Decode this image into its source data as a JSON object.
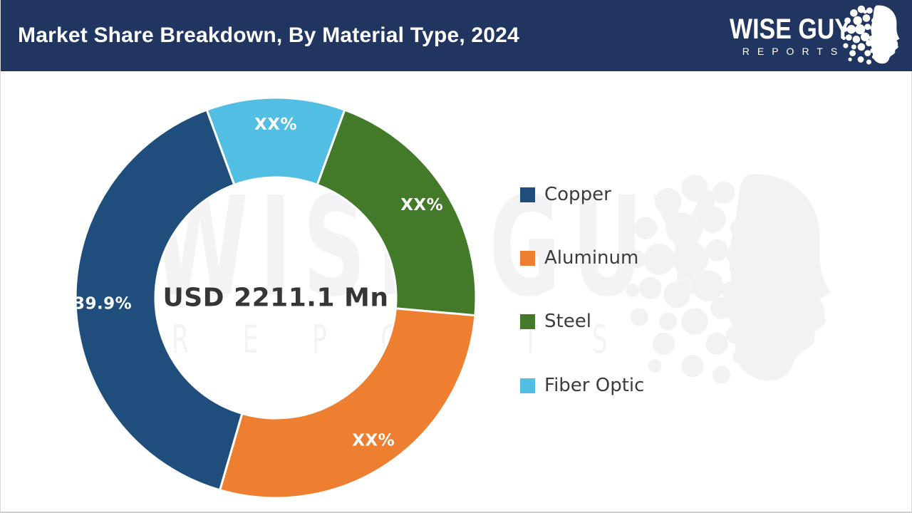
{
  "header": {
    "title": "Market Share Breakdown, By Material Type, 2024",
    "brand": {
      "wordmark": "WISE GUY",
      "tagline": "REPORTS"
    }
  },
  "watermark": {
    "wordmark": "WISE GUY",
    "tagline": "REPORTS"
  },
  "chart_data": {
    "type": "donut",
    "title": "Market Share Breakdown, By Material Type, 2024",
    "center_label": "USD 2211.1 Mn",
    "value_unit": "% market share",
    "segments": [
      {
        "label": "Fiber Optic",
        "display_label": "XX%",
        "value": 11.2,
        "color": "#53BEE4"
      },
      {
        "label": "Steel",
        "display_label": "XX%",
        "value": 20.8,
        "color": "#427A29"
      },
      {
        "label": "Aluminum",
        "display_label": "XX%",
        "value": 28.1,
        "color": "#EE7F30"
      },
      {
        "label": "Copper",
        "display_label": "39.9%",
        "value": 39.9,
        "color": "#1F4E7C"
      }
    ]
  },
  "legend": {
    "items": [
      {
        "label": "Copper",
        "color": "#1F4E7C"
      },
      {
        "label": "Aluminum",
        "color": "#EE7F30"
      },
      {
        "label": "Steel",
        "color": "#427A29"
      },
      {
        "label": "Fiber Optic",
        "color": "#53BEE4"
      }
    ]
  }
}
